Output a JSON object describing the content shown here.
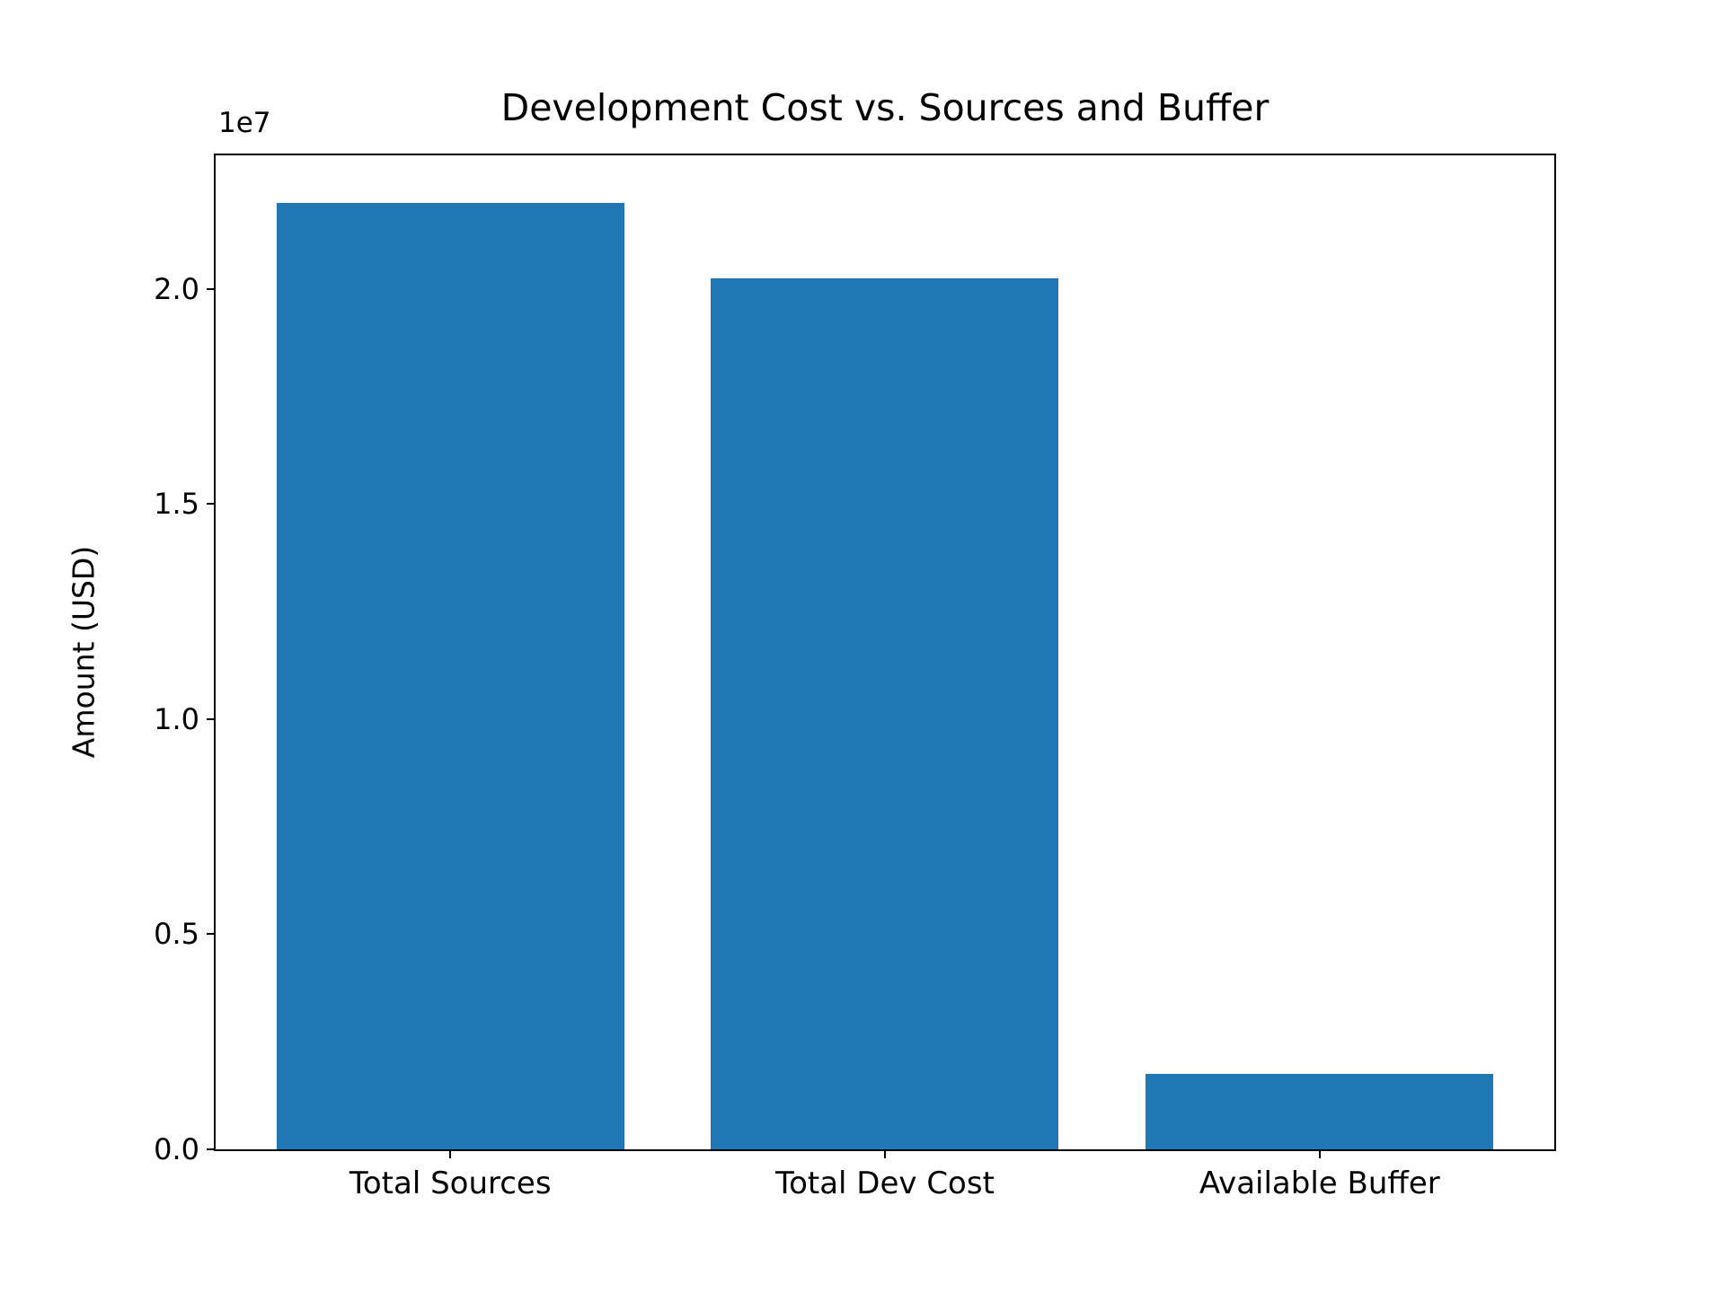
{
  "chart_data": {
    "type": "bar",
    "title": "Development Cost vs. Sources and Buffer",
    "ylabel": "Amount (USD)",
    "xlabel": "",
    "y_offset_text": "1e7",
    "categories": [
      "Total Sources",
      "Total Dev Cost",
      "Available Buffer"
    ],
    "values": [
      22000000,
      20250000,
      1750000
    ],
    "ylim": [
      0,
      23100000
    ],
    "yticks": [
      {
        "value": 0,
        "label": "0.0"
      },
      {
        "value": 5000000,
        "label": "0.5"
      },
      {
        "value": 10000000,
        "label": "1.0"
      },
      {
        "value": 15000000,
        "label": "1.5"
      },
      {
        "value": 20000000,
        "label": "2.0"
      }
    ],
    "bar_color": "#1f77b4",
    "bar_width_fraction": 0.8,
    "grid": false,
    "legend": "none",
    "background_color": "#ffffff",
    "spine_color": "#000000"
  }
}
